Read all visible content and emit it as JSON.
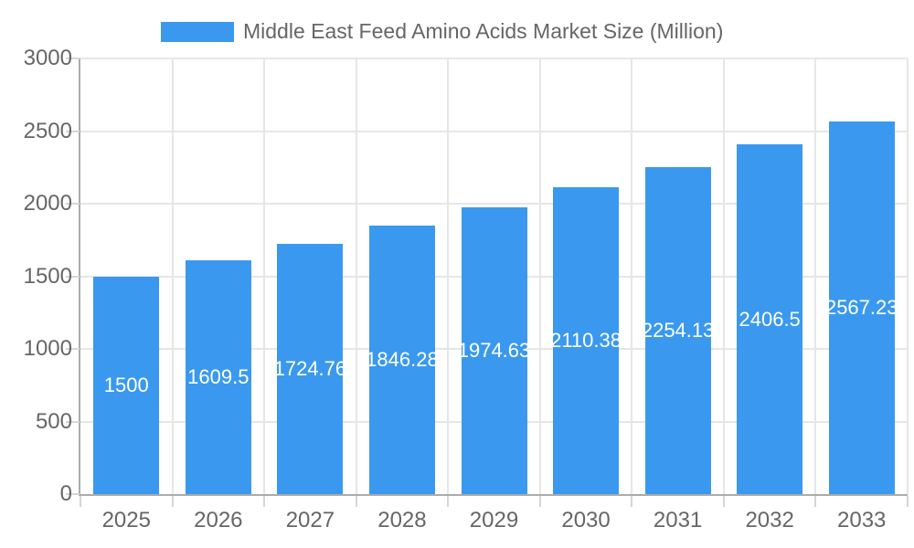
{
  "legend": {
    "label": "Middle East Feed Amino Acids Market Size (Million)"
  },
  "colors": {
    "bar": "#3A99EE",
    "text": "#666666",
    "grid": "#E6E6E6",
    "axis_line": "#ABABAB",
    "tick": "#D6D6D6",
    "bar_label": "#FFFFFF"
  },
  "chart_data": {
    "type": "bar",
    "title": "Middle East Feed Amino Acids Market Size (Million)",
    "categories": [
      "2025",
      "2026",
      "2027",
      "2028",
      "2029",
      "2030",
      "2031",
      "2032",
      "2033"
    ],
    "values": [
      1500,
      1609.5,
      1724.76,
      1846.28,
      1974.63,
      2110.38,
      2254.13,
      2406.5,
      2567.23
    ],
    "value_labels": [
      "1500",
      "1609.5",
      "1724.76",
      "1846.28",
      "1974.63",
      "2110.38",
      "2254.13",
      "2406.5",
      "2567.23"
    ],
    "xlabel": "",
    "ylabel": "",
    "ylim": [
      0,
      3000
    ],
    "yticks": [
      0,
      500,
      1000,
      1500,
      2000,
      2500,
      3000
    ],
    "grid": true,
    "legend_position": "top",
    "bar_label_position": "center-inside"
  }
}
